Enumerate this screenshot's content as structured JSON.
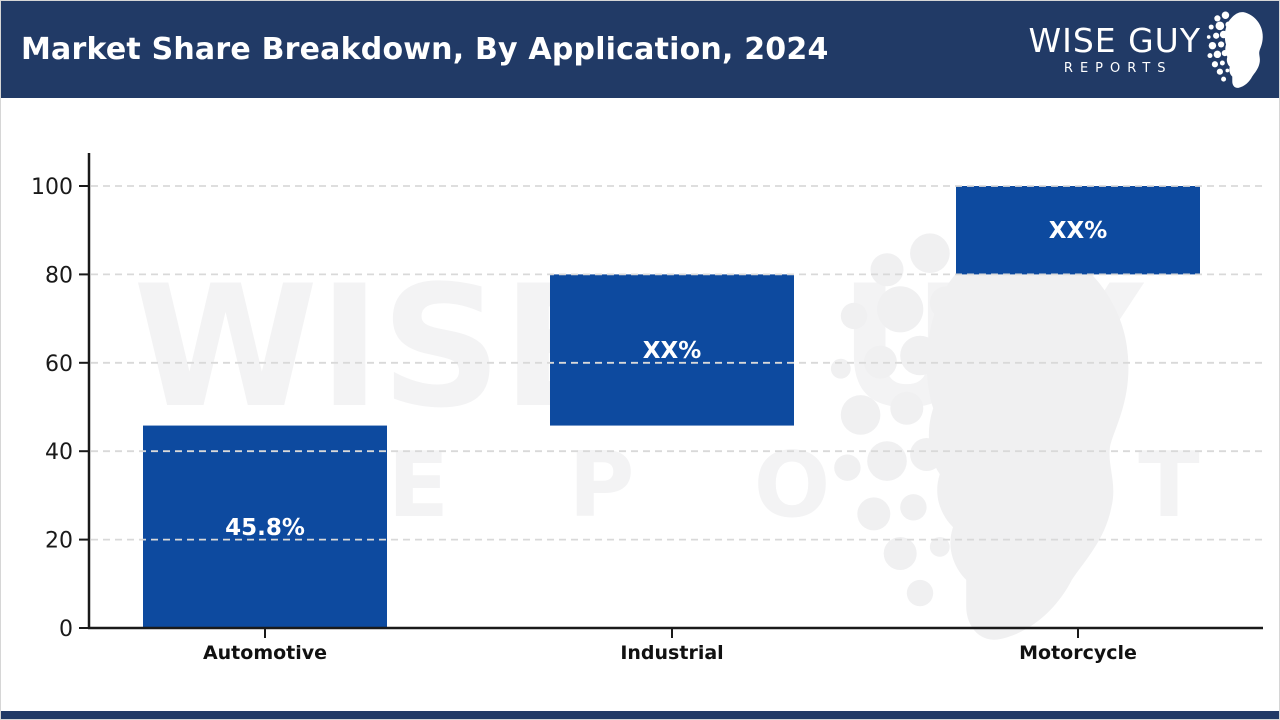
{
  "header": {
    "title": "Market Share Breakdown, By Application, 2024",
    "logo_line1": "WISE GUY",
    "logo_line2": "REPORTS"
  },
  "watermark": {
    "word1": "WISE",
    "word2": "GUY",
    "line2": "REPORTS",
    "head_icon": "dotted-head-profile"
  },
  "colors": {
    "header_bg": "#213a66",
    "bar": "#0d4a9f",
    "axis": "#1a1a1a",
    "grid": "#d9d9d9",
    "bar_label": "#ffffff",
    "watermark": "#f3f3f4"
  },
  "chart_data": {
    "type": "bar",
    "subtype": "floating-waterfall",
    "title": "Market Share Breakdown, By Application, 2024",
    "xlabel": "",
    "ylabel": "",
    "categories": [
      "Automotive",
      "Industrial",
      "Motorcycle"
    ],
    "segments": [
      {
        "category": "Automotive",
        "start": 0,
        "end": 45.8,
        "label": "45.8%"
      },
      {
        "category": "Industrial",
        "start": 45.8,
        "end": 80,
        "label": "XX%"
      },
      {
        "category": "Motorcycle",
        "start": 80,
        "end": 100,
        "label": "XX%"
      }
    ],
    "yticks": [
      0,
      20,
      40,
      60,
      80,
      100
    ],
    "ylim": [
      0,
      100
    ],
    "grid": "horizontal-dashed",
    "legend": "none",
    "bar_color": "#0d4a9f"
  }
}
